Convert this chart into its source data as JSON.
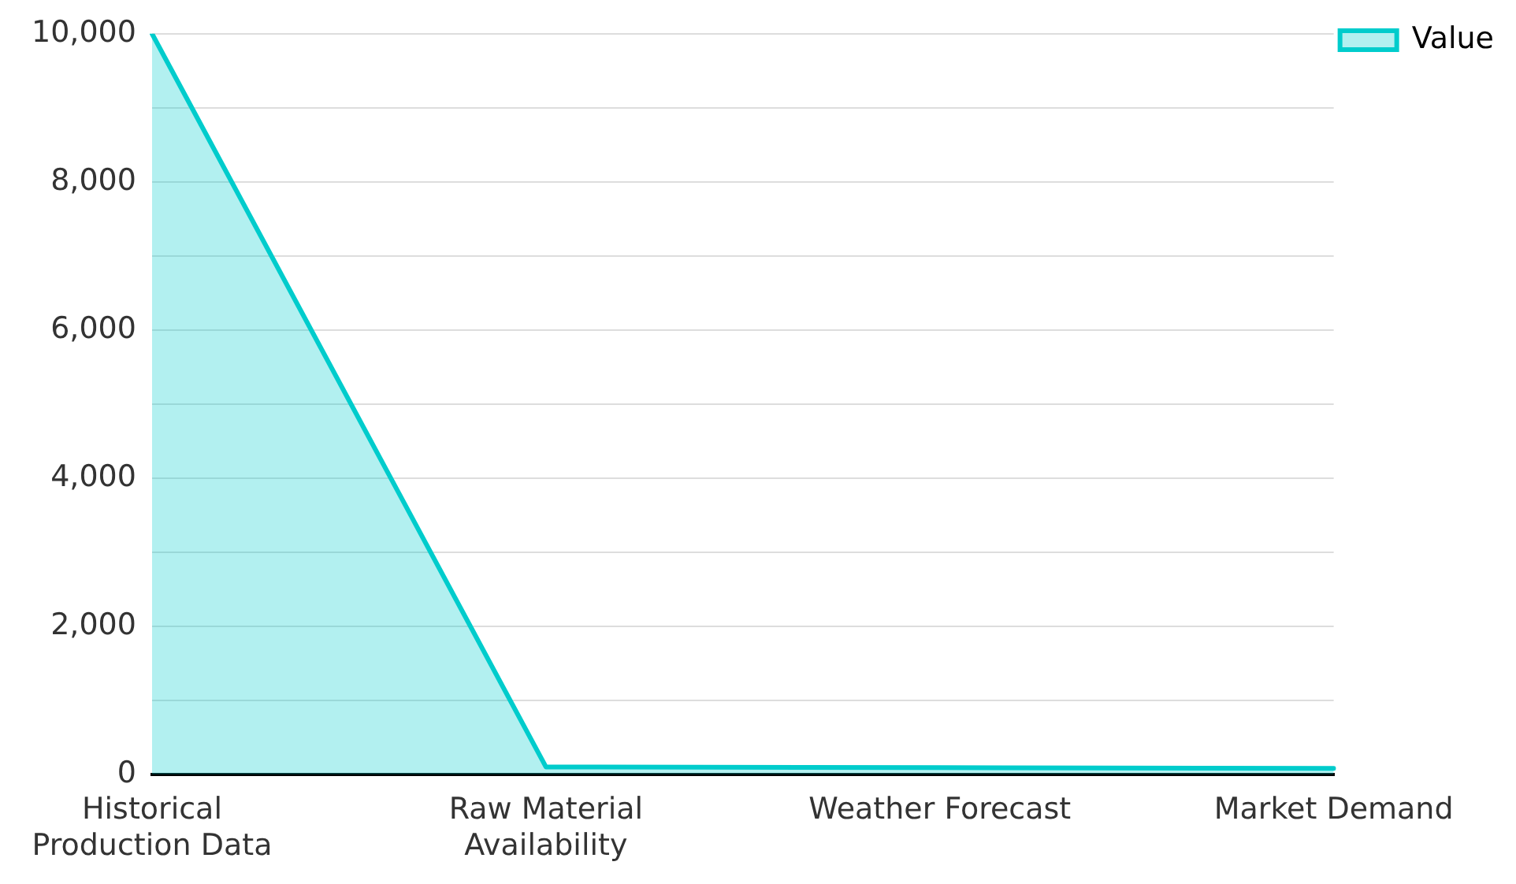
{
  "chart_data": {
    "type": "area",
    "categories": [
      "Historical Production Data",
      "Raw Material Availability",
      "Weather Forecast",
      "Market Demand"
    ],
    "series": [
      {
        "name": "Value",
        "color": "#00cccc",
        "values": [
          10000,
          100,
          90,
          80
        ]
      }
    ],
    "ylim": [
      0,
      10000
    ],
    "yticks": [
      0,
      {
        "value": 1000,
        "label": null
      },
      {
        "value": 2000,
        "label": "2,000"
      },
      {
        "value": 3000,
        "label": null
      },
      {
        "value": 4000,
        "label": "4,000"
      },
      {
        "value": 5000,
        "label": null
      },
      {
        "value": 6000,
        "label": "6,000"
      },
      {
        "value": 7000,
        "label": null
      },
      {
        "value": 8000,
        "label": "8,000"
      },
      {
        "value": 9000,
        "label": null
      },
      {
        "value": 10000,
        "label": "10,000"
      }
    ],
    "grid": "y",
    "legend": "top right",
    "marker": "none"
  }
}
